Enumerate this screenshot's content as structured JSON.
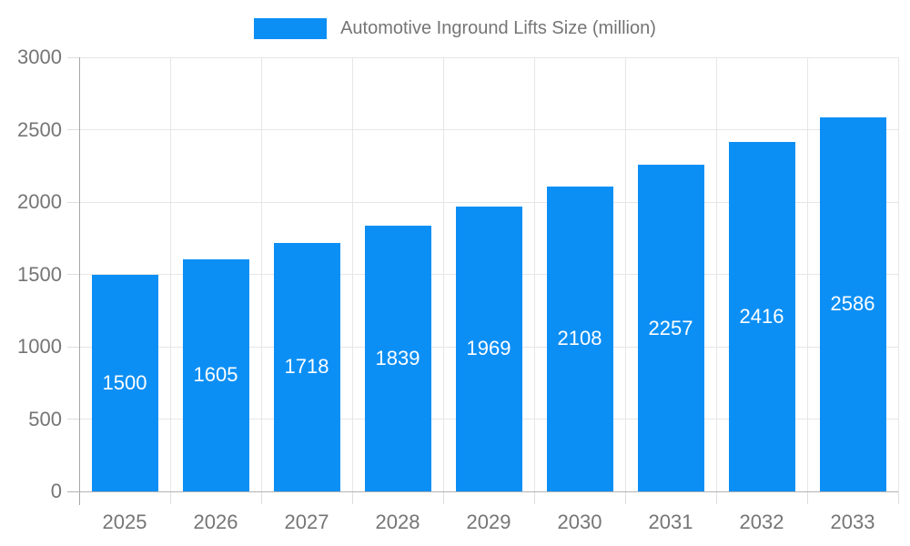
{
  "chart_data": {
    "type": "bar",
    "title": "",
    "legend": "Automotive Inground Lifts Size (million)",
    "legend_position": "top-center",
    "categories": [
      "2025",
      "2026",
      "2027",
      "2028",
      "2029",
      "2030",
      "2031",
      "2032",
      "2033"
    ],
    "values": [
      1500,
      1605,
      1718,
      1839,
      1969,
      2108,
      2257,
      2416,
      2586
    ],
    "value_labels_visible": true,
    "xlabel": "",
    "ylabel": "",
    "ylim": [
      0,
      3000
    ],
    "yticks": [
      0,
      500,
      1000,
      1500,
      2000,
      2500,
      3000
    ],
    "grid": true,
    "colors": {
      "bar": "#0C8FF5",
      "grid_line": "#e6e6e6",
      "axis_line": "#a6a6a6",
      "baseline": "#b3b3b3",
      "tick_mark": "#dedede",
      "axis_text": "#757575",
      "legend_text": "#757575",
      "value_text": "#ffffff",
      "background": "#ffffff"
    }
  }
}
